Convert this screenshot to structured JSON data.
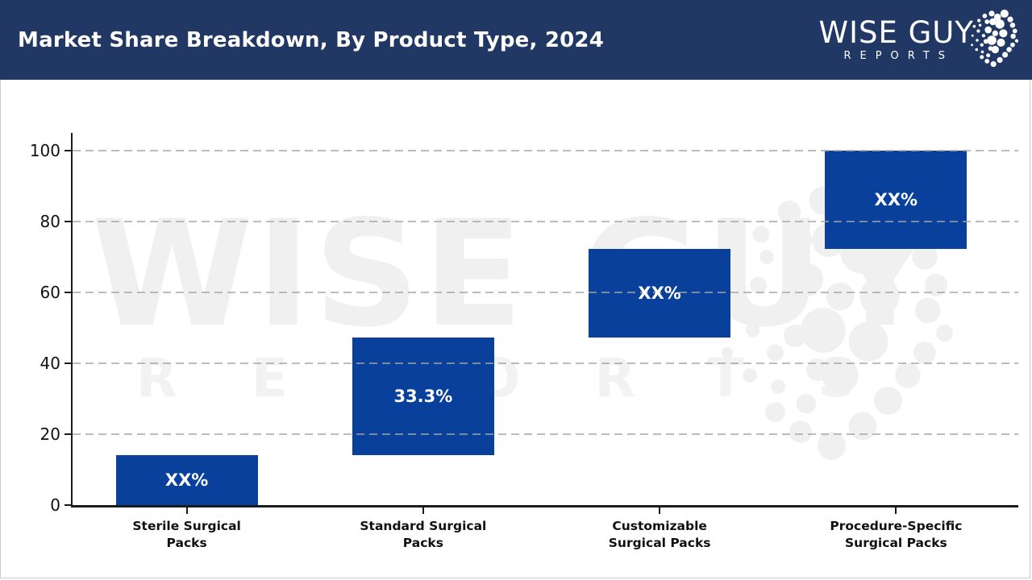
{
  "header": {
    "title": "Market Share Breakdown, By Product Type, 2024",
    "logo_line1": "WISE GUY",
    "logo_line2": "REPORTS",
    "bg_color": "#213864"
  },
  "watermark": {
    "line1": "WISE GUY",
    "line2": "REPORTS"
  },
  "chart_data": {
    "type": "bar",
    "variant": "waterfall",
    "title": "Market Share Breakdown, By Product Type, 2024",
    "categories": [
      "Sterile Surgical Packs",
      "Standard Surgical Packs",
      "Customizable Surgical Packs",
      "Procedure-Specific Surgical Packs"
    ],
    "bars": [
      {
        "label_lines": [
          "Sterile Surgical",
          "Packs"
        ],
        "start": 0,
        "end": 14,
        "value_label": "XX%"
      },
      {
        "label_lines": [
          "Standard Surgical",
          "Packs"
        ],
        "start": 14,
        "end": 47.3,
        "value_label": "33.3%"
      },
      {
        "label_lines": [
          "Customizable",
          "Surgical Packs"
        ],
        "start": 47.3,
        "end": 72.3,
        "value_label": "XX%"
      },
      {
        "label_lines": [
          "Procedure-Specific",
          "Surgical Packs"
        ],
        "start": 72.3,
        "end": 100,
        "value_label": "XX%"
      }
    ],
    "ylim": [
      0,
      100
    ],
    "yticks": [
      0,
      20,
      40,
      60,
      80,
      100
    ],
    "grid": "horizontal-dashed-over-bars",
    "legend": "none",
    "colors": {
      "bar": "#08409c",
      "grid": "#a5a5a5",
      "axis": "#1a1a1a",
      "header_bg": "#213864",
      "watermark": "#f0f0f1",
      "bar_label_text": "#ffffff"
    }
  }
}
